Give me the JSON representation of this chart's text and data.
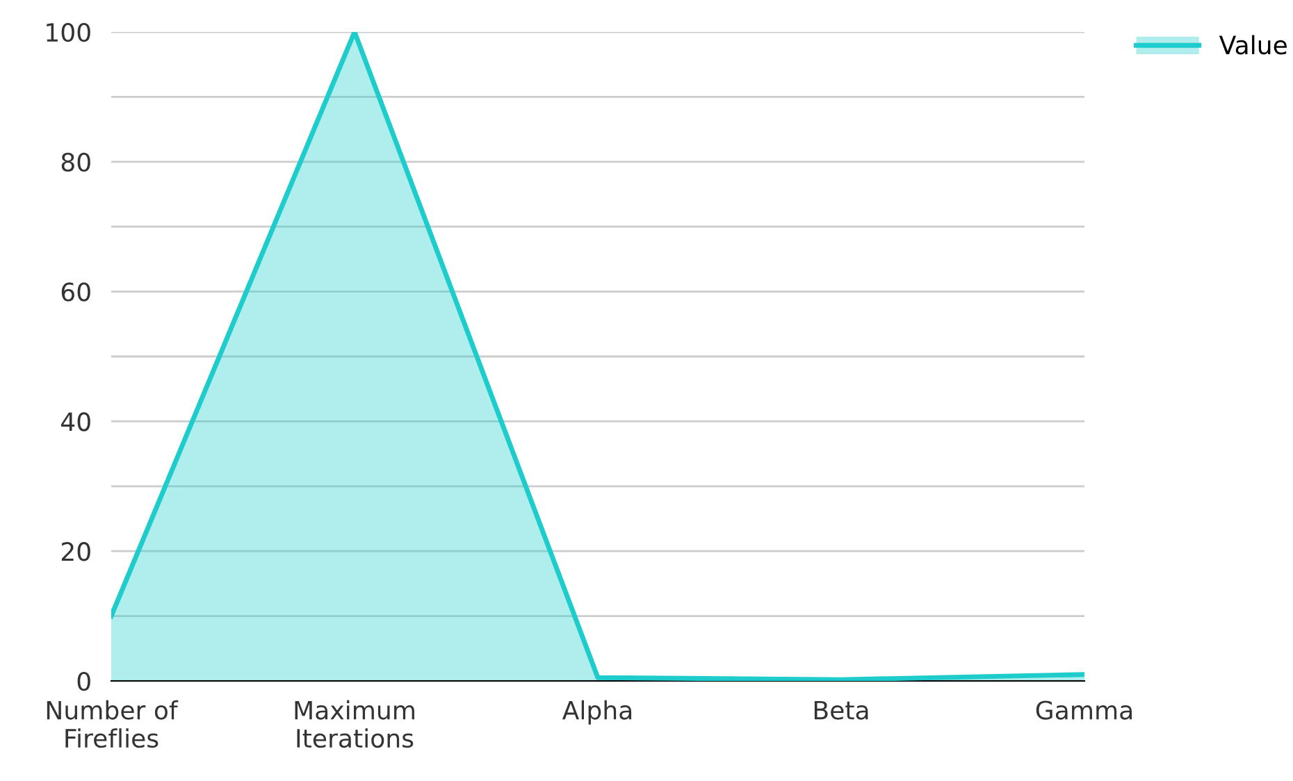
{
  "chart_data": {
    "type": "area",
    "categories": [
      "Number of\nFireflies",
      "Maximum\nIterations",
      "Alpha",
      "Beta",
      "Gamma"
    ],
    "series": [
      {
        "name": "Value",
        "color": "#1ecccc",
        "values": [
          10,
          100,
          0.5,
          0.2,
          1
        ]
      }
    ],
    "ylim": [
      0,
      100
    ],
    "yticks": [
      0,
      {
        "value": 10,
        "label": null
      },
      20,
      {
        "value": 30,
        "label": null
      },
      40,
      {
        "value": 50,
        "label": null
      },
      60,
      {
        "value": 70,
        "label": null
      },
      80,
      {
        "value": 90,
        "label": null
      },
      100
    ],
    "grid": "y",
    "legend": "top right"
  }
}
